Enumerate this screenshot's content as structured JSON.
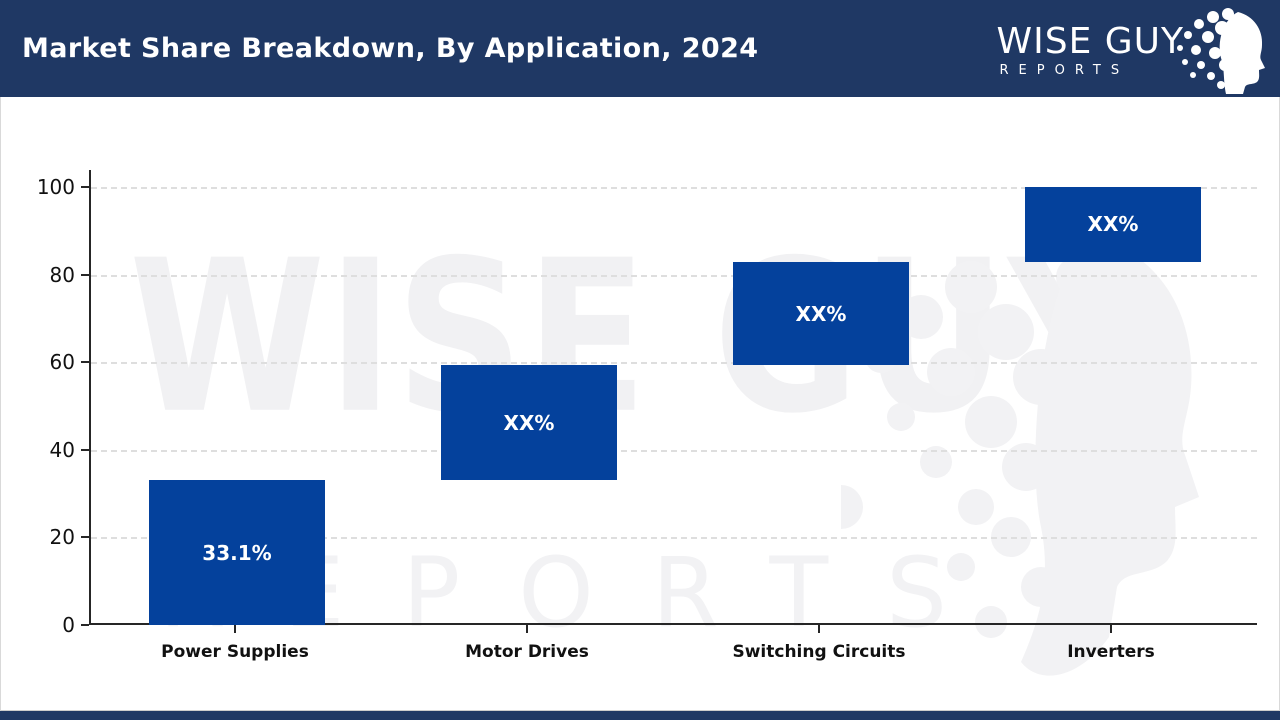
{
  "header": {
    "title": "Market Share Breakdown, By Application, 2024",
    "logo": {
      "line1": "WISE GUY",
      "line2": "REPORTS"
    }
  },
  "watermark": {
    "line1": "WISE GUY",
    "line2": "REPORTS"
  },
  "colors": {
    "header_background": "#1F3864",
    "bar_blue": "#04419C",
    "watermark_gray": "#f1f1f3",
    "footer_navy": "#1F3864"
  },
  "chart_data": {
    "type": "bar",
    "variant": "waterfall",
    "title": "Market Share Breakdown, By Application, 2024",
    "categories": [
      "Power Supplies",
      "Motor Drives",
      "Switching Circuits",
      "Inverters"
    ],
    "series": [
      {
        "name": "Market Share (%)",
        "segments": [
          {
            "category": "Power Supplies",
            "start": 0,
            "end": 33.1,
            "label": "33.1%"
          },
          {
            "category": "Motor Drives",
            "start": 33.1,
            "end": 59.3,
            "label": "XX%"
          },
          {
            "category": "Switching Circuits",
            "start": 59.3,
            "end": 82.9,
            "label": "XX%"
          },
          {
            "category": "Inverters",
            "start": 82.9,
            "end": 100,
            "label": "XX%"
          }
        ]
      }
    ],
    "xlabel": "",
    "ylabel": "",
    "ylim": [
      0,
      105
    ],
    "yticks": [
      0,
      20,
      40,
      60,
      80,
      100
    ],
    "grid": "horizontal-dashed",
    "legend": "none",
    "bar_color": "#04419C",
    "bar_label_color": "#ffffff"
  }
}
